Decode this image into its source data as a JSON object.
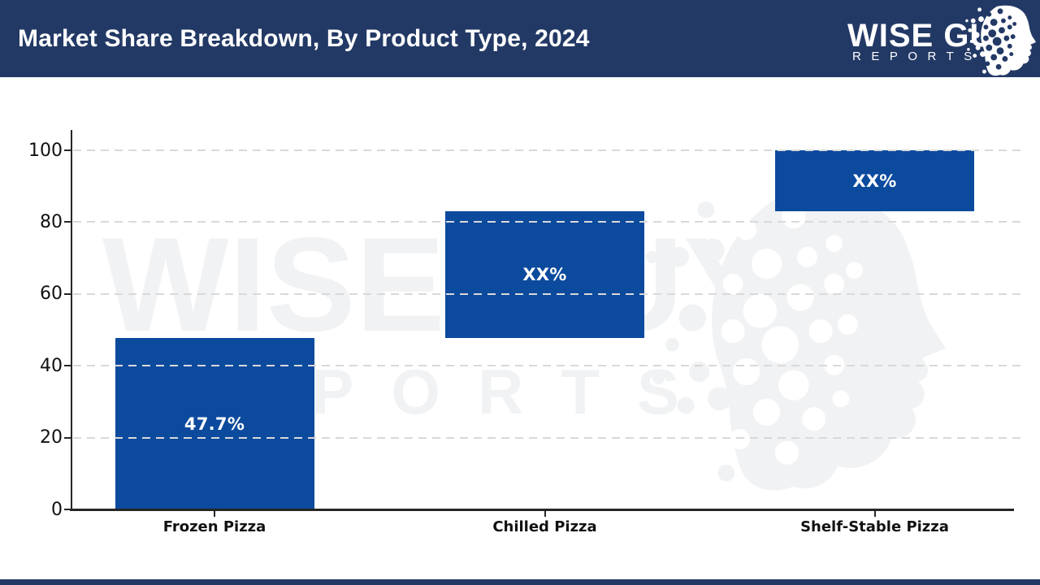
{
  "header": {
    "title": "Market Share Breakdown, By Product Type, 2024",
    "logo": {
      "wordmark": "WISE GUY",
      "subtext": "REPORTS"
    }
  },
  "watermark": {
    "wordmark": "WISE GUY",
    "subtext": "REPORTS"
  },
  "colors": {
    "header_bg": "#233965",
    "footer_bg": "#233965",
    "bar": "#0c4a9e",
    "gridline": "#d9d9d9",
    "axis": "#262626",
    "watermark": "#f1f2f4",
    "bar_label": "#ffffff",
    "tick_text": "#111111"
  },
  "chart_data": {
    "type": "bar",
    "variant": "floating-segment stacked share breakdown",
    "title": "Market Share Breakdown, By Product Type, 2024",
    "categories": [
      "Frozen Pizza",
      "Chilled Pizza",
      "Shelf-Stable Pizza"
    ],
    "segments": [
      {
        "category": "Frozen Pizza",
        "from": 0,
        "to": 47.7,
        "label": "47.7%"
      },
      {
        "category": "Chilled Pizza",
        "from": 47.7,
        "to": 83,
        "label": "XX%"
      },
      {
        "category": "Shelf-Stable Pizza",
        "from": 83,
        "to": 100,
        "label": "XX%"
      }
    ],
    "xlabel": "",
    "ylabel": "",
    "yticks": [
      0,
      20,
      40,
      60,
      80,
      100
    ],
    "ylim": [
      0,
      100
    ],
    "grid": "horizontal dashed, drawn over bars",
    "legend": "none"
  }
}
